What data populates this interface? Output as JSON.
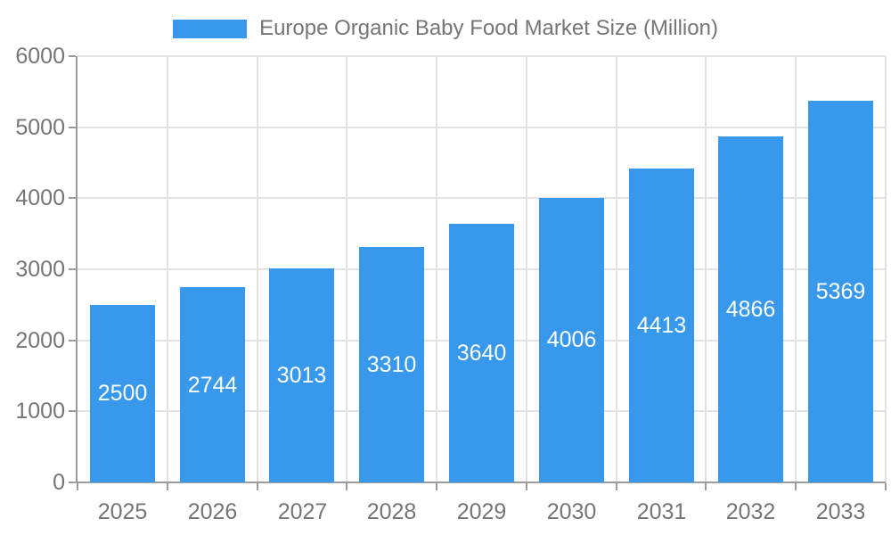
{
  "chart_data": {
    "type": "bar",
    "title": "Europe Organic Baby Food Market Size (Million)",
    "legend_position": "top",
    "categories": [
      "2025",
      "2026",
      "2027",
      "2028",
      "2029",
      "2030",
      "2031",
      "2032",
      "2033"
    ],
    "values": [
      2500,
      2744,
      3013,
      3310,
      3640,
      4006,
      4413,
      4866,
      5369
    ],
    "xlabel": "",
    "ylabel": "",
    "ylim": [
      0,
      6000
    ],
    "yticks": [
      0,
      1000,
      2000,
      3000,
      4000,
      5000,
      6000
    ],
    "grid": true,
    "colors": {
      "bar": "#3899ec",
      "bar_label_text": "#ffffff",
      "axis_text": "#757575",
      "axis_line": "#9b9b9b",
      "gridline": "#e2e2e2",
      "background": "#ffffff"
    }
  },
  "legend": {
    "label": "Europe Organic Baby Food Market Size (Million)"
  }
}
